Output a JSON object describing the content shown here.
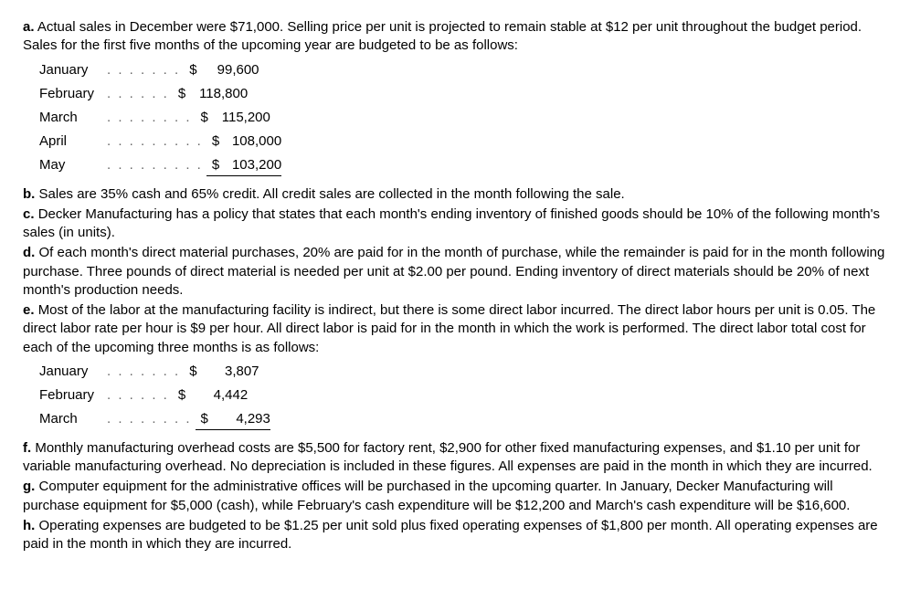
{
  "items": {
    "a": {
      "label": "a.",
      "text": "Actual sales in December were $71,000. Selling price per unit is projected to remain stable at $12 per unit throughout the budget period. Sales for the first five months of the upcoming year are budgeted to be as follows:"
    },
    "b": {
      "label": "b.",
      "text": "Sales are 35% cash and 65% credit. All credit sales are collected in the month following the sale."
    },
    "c": {
      "label": "c.",
      "text": "Decker Manufacturing has a policy that states that each month's ending inventory of finished goods should be 10% of the following month's sales (in units)."
    },
    "d": {
      "label": "d.",
      "text": "Of each month's direct material purchases, 20% are paid for in the month of purchase, while the remainder is paid for in the month following purchase. Three pounds of direct material is needed per unit at $2.00 per pound. Ending inventory of direct materials should be 20% of next month's production needs."
    },
    "e": {
      "label": "e.",
      "text": "Most of the labor at the manufacturing facility is indirect, but there is some direct labor incurred. The direct labor hours per unit is 0.05. The direct labor rate per hour is $9 per hour. All direct labor is paid for in the month in which the work is performed. The direct labor total cost for each of the upcoming three months is as follows:"
    },
    "f": {
      "label": "f.",
      "text": "Monthly manufacturing overhead costs are $5,500 for factory rent, $2,900 for other fixed manufacturing expenses, and $1.10 per unit for variable manufacturing overhead. No depreciation is included in these figures. All expenses are paid in the month in which they are incurred."
    },
    "g": {
      "label": "g.",
      "text": "Computer equipment for the administrative offices will be purchased in the upcoming quarter. In January, Decker Manufacturing will purchase equipment for $5,000 (cash), while February's cash expenditure will be $12,200 and March's cash expenditure will be $16,600."
    },
    "h": {
      "label": "h.",
      "text": "Operating expenses are budgeted to be $1.25 per unit sold plus fixed operating expenses of $1,800 per month. All operating expenses are paid in the month in which they are incurred."
    }
  },
  "salesTable": [
    {
      "month": "January",
      "dots": ". . . . . . .",
      "sign": "$",
      "value": "99,600"
    },
    {
      "month": "February",
      "dots": ". . . . . .",
      "sign": "$",
      "value": "118,800"
    },
    {
      "month": "March",
      "dots": ". . . . . . . .",
      "sign": "$",
      "value": "115,200"
    },
    {
      "month": "April",
      "dots": ". . . . . . . . .",
      "sign": "$",
      "value": "108,000"
    },
    {
      "month": "May",
      "dots": ". . . . . . . . .",
      "sign": "$",
      "value": "103,200"
    }
  ],
  "laborTable": [
    {
      "month": "January",
      "dots": ". . . . . . .",
      "sign": "$",
      "value": "3,807"
    },
    {
      "month": "February",
      "dots": ". . . . . .",
      "sign": "$",
      "value": "4,442"
    },
    {
      "month": "March",
      "dots": ". . . . . . . .",
      "sign": "$",
      "value": "4,293"
    }
  ]
}
